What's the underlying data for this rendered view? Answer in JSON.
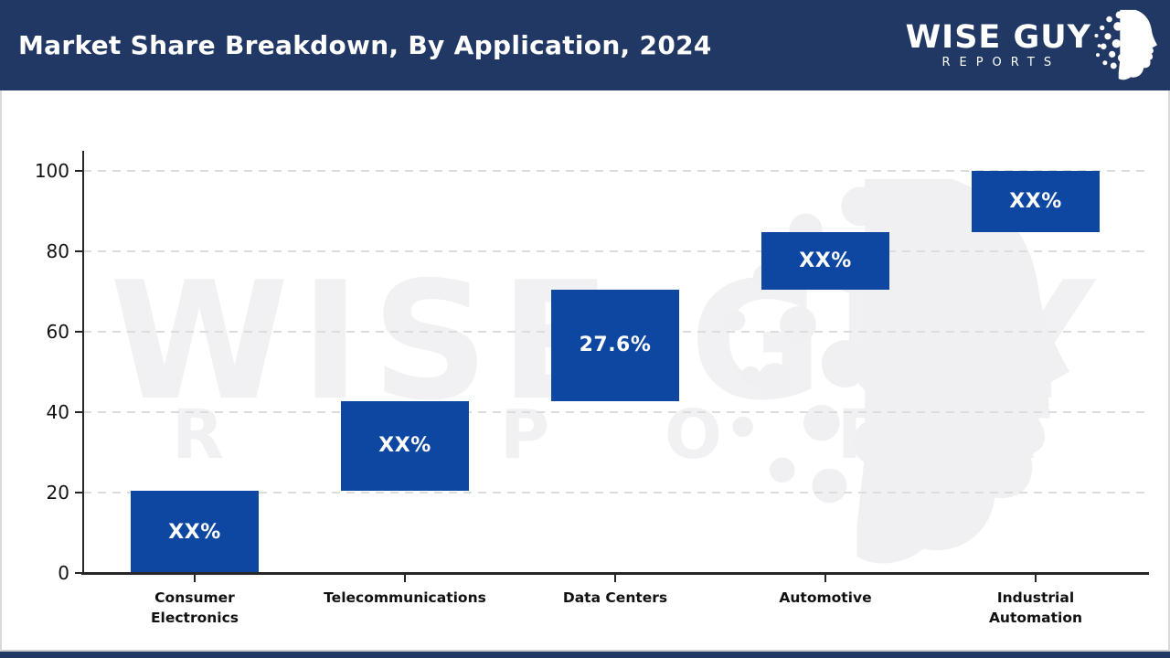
{
  "header": {
    "title": "Market Share Breakdown, By Application, 2024",
    "logo_line1": "WISE GUY",
    "logo_line2": "REPORTS",
    "background_color": "#213864"
  },
  "watermark": {
    "line1": "WISE GUY",
    "line2": "R E P O R T S"
  },
  "chart_data": {
    "type": "bar",
    "subtype": "waterfall",
    "title": "Market Share Breakdown, By Application, 2024",
    "categories": [
      "Consumer Electronics",
      "Telecommunications",
      "Data Centers",
      "Automotive",
      "Industrial Automation"
    ],
    "category_label_lines": [
      [
        "Consumer",
        "Electronics"
      ],
      [
        "Telecommunications"
      ],
      [
        "Data Centers"
      ],
      [
        "Automotive"
      ],
      [
        "Industrial",
        "Automation"
      ]
    ],
    "segments": [
      {
        "category": "Consumer Electronics",
        "start": 0,
        "end": 20.4,
        "value": 20.4,
        "value_label": "XX%"
      },
      {
        "category": "Telecommunications",
        "start": 20.4,
        "end": 42.8,
        "value": 22.4,
        "value_label": "XX%"
      },
      {
        "category": "Data Centers",
        "start": 42.8,
        "end": 70.4,
        "value": 27.6,
        "value_label": "27.6%"
      },
      {
        "category": "Automotive",
        "start": 70.4,
        "end": 84.8,
        "value": 14.4,
        "value_label": "XX%"
      },
      {
        "category": "Industrial Automation",
        "start": 84.8,
        "end": 100,
        "value": 15.2,
        "value_label": "XX%"
      }
    ],
    "xlabel": "",
    "ylabel": "",
    "ylim": [
      0,
      100
    ],
    "yticks": [
      0,
      20,
      40,
      60,
      80,
      100
    ],
    "grid": {
      "axis": "y",
      "style": "dashed",
      "color": "#dcdcdc"
    },
    "bar_color": "#0d47a1",
    "bar_label_color": "#ffffff",
    "legend": "none"
  }
}
